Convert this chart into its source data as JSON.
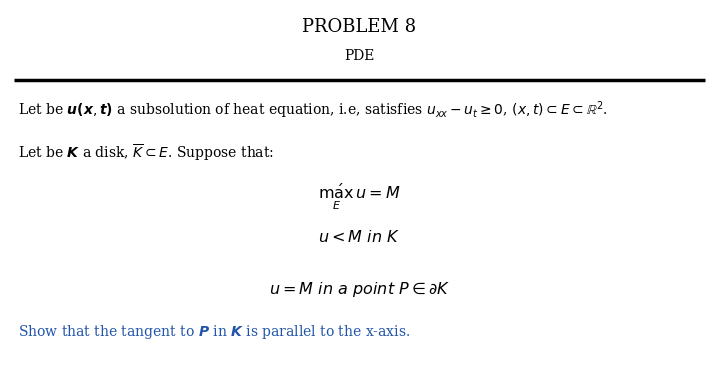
{
  "title": "PROBLEM 8",
  "subtitle": "PDE",
  "bg_color": "#ffffff",
  "title_color": "#000000",
  "line3_color": "#2255aa",
  "figsize": [
    7.19,
    3.91
  ],
  "dpi": 100
}
